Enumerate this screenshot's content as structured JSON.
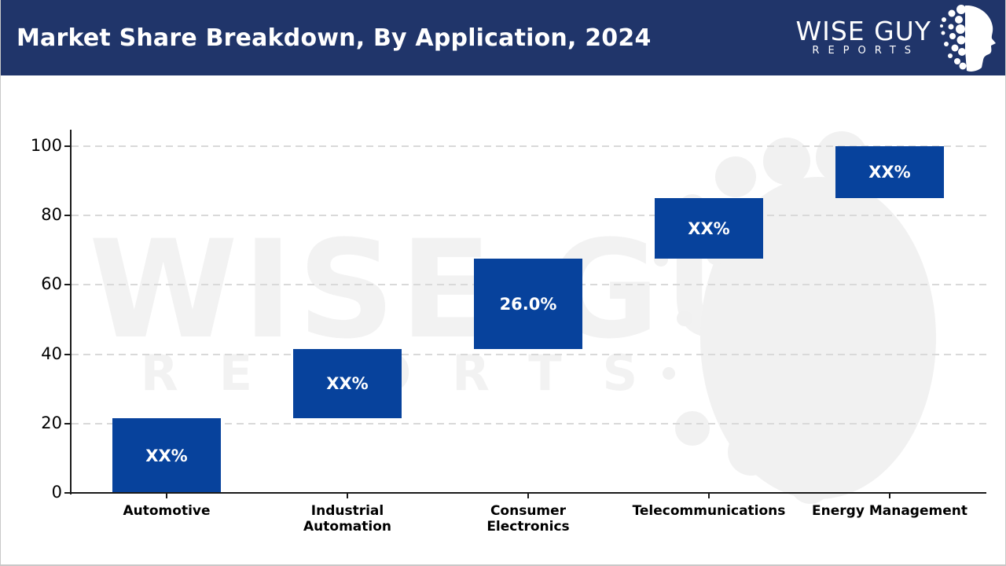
{
  "header": {
    "logo": {
      "line1": "WISE GUY",
      "line2": "REPORTS"
    }
  },
  "watermark": {
    "line1": "WISE GUY",
    "line2": "REPORTS"
  },
  "chart_data": {
    "type": "bar",
    "subtype": "waterfall-floating-bars",
    "title": "Market Share Breakdown, By Application, 2024",
    "categories": [
      "Automotive",
      "Industrial\nAutomation",
      "Consumer\nElectronics",
      "Telecommunications",
      "Energy Management"
    ],
    "bars": [
      {
        "category": "Automotive",
        "start": 0,
        "end": 21.5,
        "label": "XX%"
      },
      {
        "category": "Industrial Automation",
        "start": 21.5,
        "end": 41.5,
        "label": "XX%"
      },
      {
        "category": "Consumer Electronics",
        "start": 41.5,
        "end": 67.5,
        "label": "26.0%"
      },
      {
        "category": "Telecommunications",
        "start": 67.5,
        "end": 85.0,
        "label": "XX%"
      },
      {
        "category": "Energy Management",
        "start": 85.0,
        "end": 100.0,
        "label": "XX%"
      }
    ],
    "yticks": [
      0,
      20,
      40,
      60,
      80,
      100
    ],
    "ylim": [
      0,
      105
    ],
    "grid": true,
    "legend": false,
    "bar_color": "#07429c",
    "gridline_color": "#d9d9d9",
    "bar_label_color": "#ffffff",
    "header_color": "#20356a",
    "watermark_color": "#f2f2f2"
  }
}
